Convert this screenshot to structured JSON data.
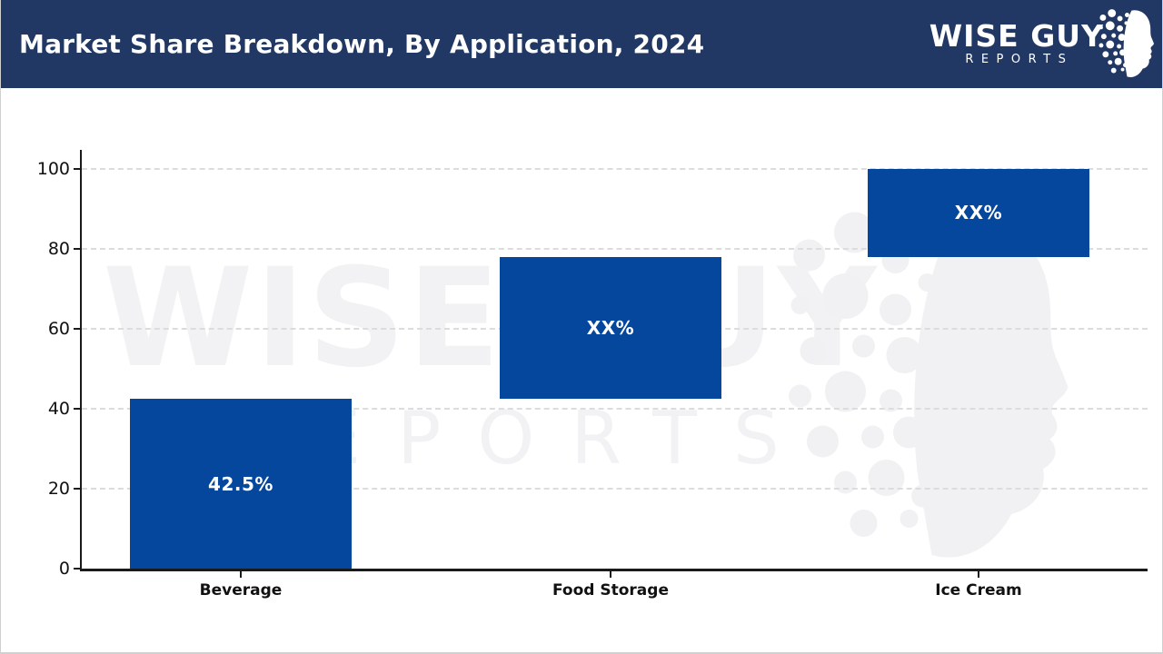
{
  "header": {
    "title": "Market Share Breakdown, By Application, 2024",
    "logo": {
      "name": "WISE GUY",
      "sub": "REPORTS"
    }
  },
  "watermark": {
    "line1": "WISE GUY",
    "line2": "REPORTS"
  },
  "chart_data": {
    "type": "bar",
    "subtype": "floating-waterfall-segments",
    "title": "Market Share Breakdown, By Application, 2024",
    "categories": [
      "Beverage",
      "Food Storage",
      "Ice Cream"
    ],
    "series": [
      {
        "name": "Market share (%)",
        "segments": [
          {
            "category": "Beverage",
            "from": 0,
            "to": 42.5,
            "label": "42.5%"
          },
          {
            "category": "Food Storage",
            "from": 42.5,
            "to": 78,
            "label": "XX%"
          },
          {
            "category": "Ice Cream",
            "from": 78,
            "to": 100,
            "label": "XX%"
          }
        ]
      }
    ],
    "xlabel": "",
    "ylabel": "",
    "ylim": [
      0,
      100
    ],
    "yticks": [
      0,
      20,
      40,
      60,
      80,
      100
    ],
    "grid": "horizontal-dashed",
    "legend_position": "none",
    "bar_color": "#04479c",
    "bar_label_color": "#ffffff"
  },
  "colors": {
    "header_bg": "#213865",
    "bar_blue": "#04479c",
    "gridline": "#dcdcdc",
    "watermark": "#f2f2f4",
    "axis": "#1a1a1a",
    "border": "#d0d0d0"
  }
}
